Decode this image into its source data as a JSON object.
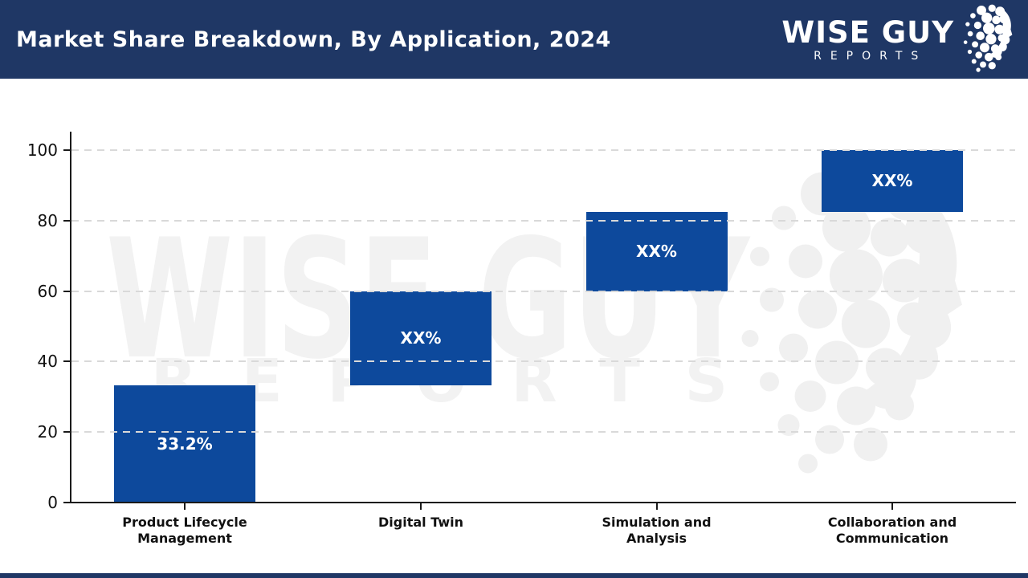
{
  "header": {
    "title": "Market Share Breakdown, By Application, 2024",
    "logo": {
      "name": "WISE GUY",
      "sub": "REPORTS"
    }
  },
  "watermark": {
    "name": "WISE GUY",
    "sub": "REPORTS"
  },
  "footer": {},
  "chart_data": {
    "type": "bar",
    "variant": "floating-waterfall",
    "title": "Market Share Breakdown, By Application, 2024",
    "categories": [
      "Product Lifecycle Management",
      "Digital Twin",
      "Simulation and Analysis",
      "Collaboration and Communication"
    ],
    "category_label_lines": [
      [
        "Product Lifecycle",
        "Management"
      ],
      [
        "Digital Twin"
      ],
      [
        "Simulation and",
        "Analysis"
      ],
      [
        "Collaboration and",
        "Communication"
      ]
    ],
    "segments": [
      {
        "category": "Product Lifecycle Management",
        "start": 0,
        "end": 33.2,
        "label": "33.2%"
      },
      {
        "category": "Digital Twin",
        "start": 33.2,
        "end": 60,
        "label": "XX%"
      },
      {
        "category": "Simulation and Analysis",
        "start": 60,
        "end": 82.5,
        "label": "XX%"
      },
      {
        "category": "Collaboration and Communication",
        "start": 82.5,
        "end": 100,
        "label": "XX%"
      }
    ],
    "xlabel": "",
    "ylabel": "",
    "ylim": [
      0,
      100
    ],
    "yticks": [
      0,
      20,
      40,
      60,
      80,
      100
    ],
    "grid": "horizontal-dashed",
    "legend": "none"
  },
  "colors": {
    "header_bg": "#1f3765",
    "footer_bg": "#1f3765",
    "bar": "#0d499c",
    "grid": "#d9d9d9",
    "axis": "#1a1a1a",
    "bar_label": "#ffffff",
    "watermark": "#f2f2f2"
  }
}
